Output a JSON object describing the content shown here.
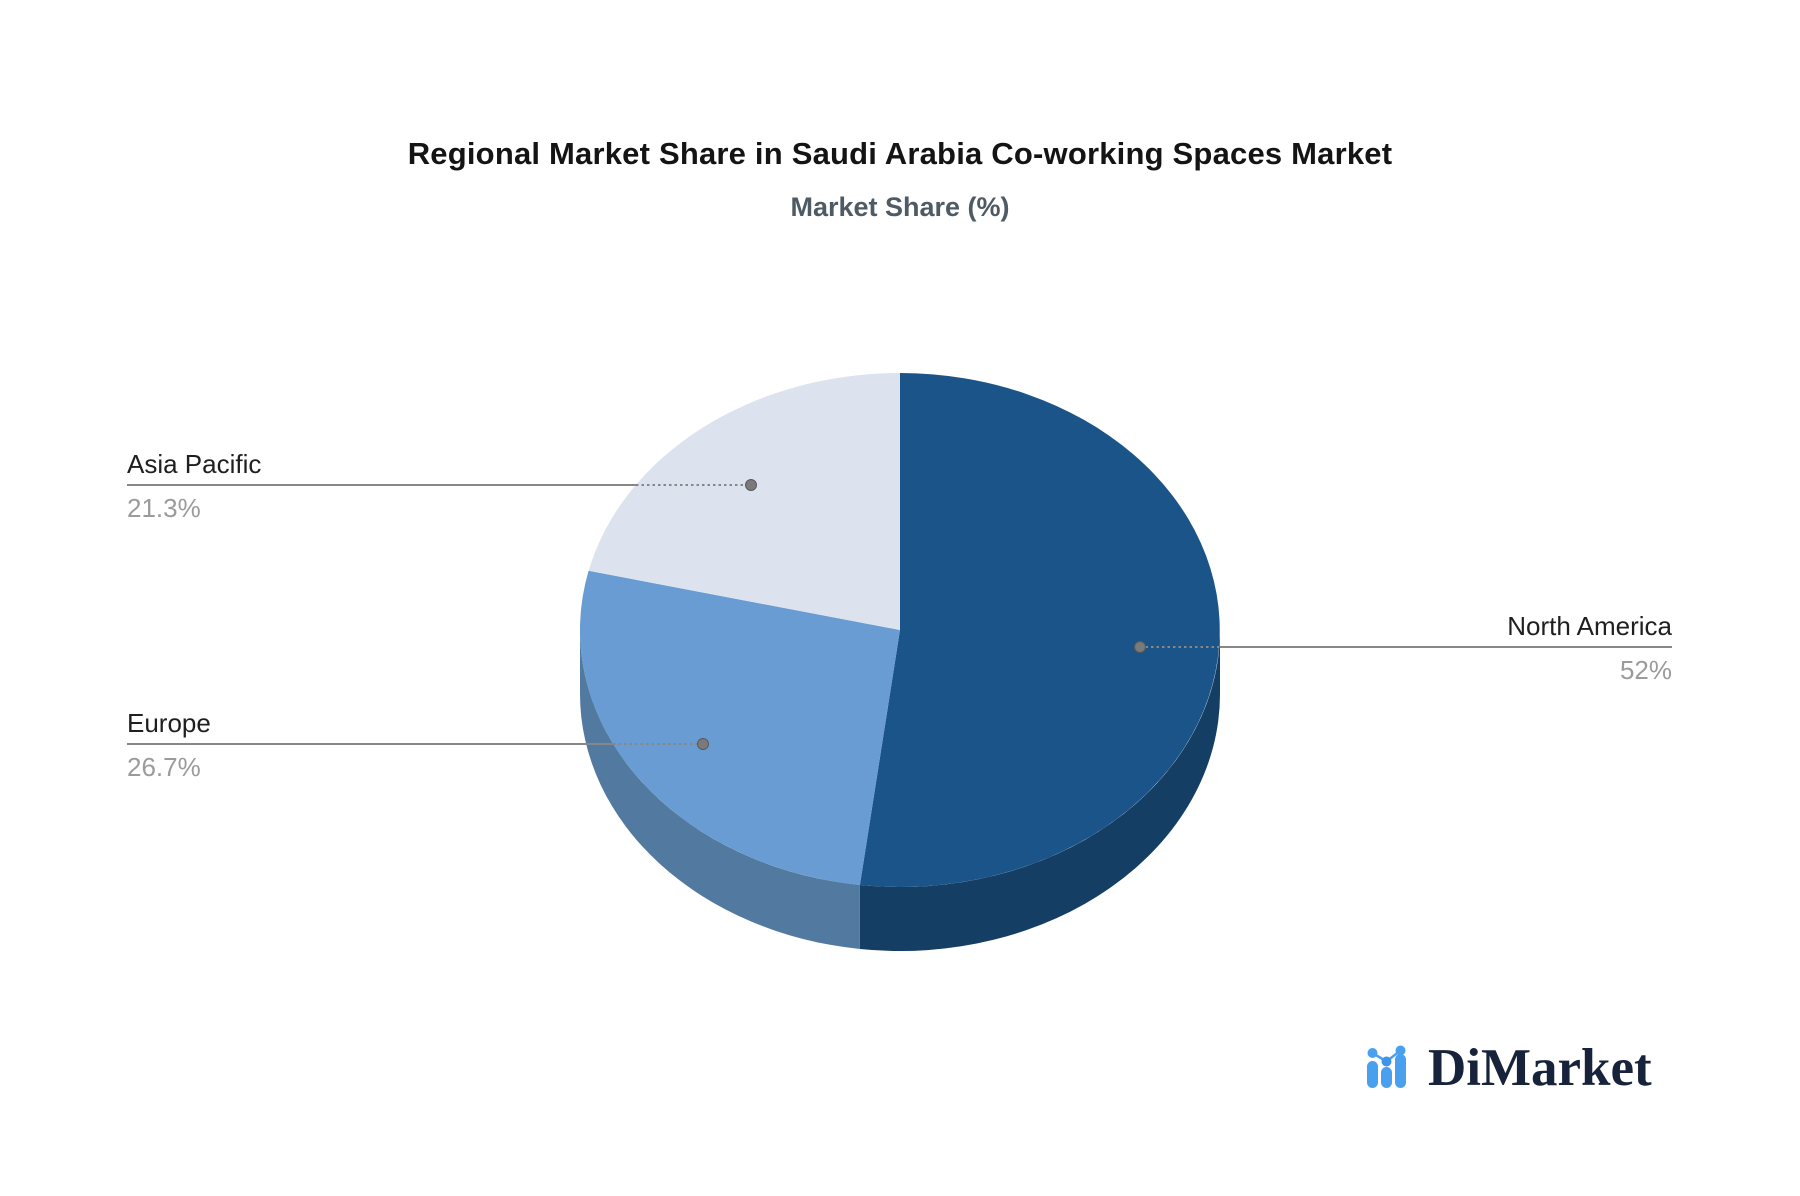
{
  "title": "Regional Market Share in Saudi Arabia Co-working Spaces Market",
  "subtitle": "Market Share (%)",
  "chart_data": {
    "type": "pie",
    "style": "3d",
    "start_angle_deg": 0,
    "direction": "clockwise",
    "title": "Regional Market Share in Saudi Arabia Co-working Spaces Market",
    "subtitle": "Market Share (%)",
    "categories": [
      "North America",
      "Europe",
      "Asia Pacific"
    ],
    "values": [
      52,
      26.7,
      21.3
    ],
    "value_labels": [
      "52%",
      "26.7%",
      "21.3%"
    ],
    "colors": [
      "#1a5489",
      "#689cd2",
      "#dce3ee"
    ],
    "side_colors": [
      "#143e63",
      "#52799f",
      "#b9c4d6"
    ],
    "label_color": "#1f1f1f",
    "value_label_color": "#9b9b9b",
    "leader_line_color": "#878787",
    "legend": "callout-labels"
  },
  "logo": {
    "text": "DiMarket",
    "icon": "bar-line-chart-icon",
    "icon_color": "#49a0ef",
    "text_color": "#17233b"
  }
}
